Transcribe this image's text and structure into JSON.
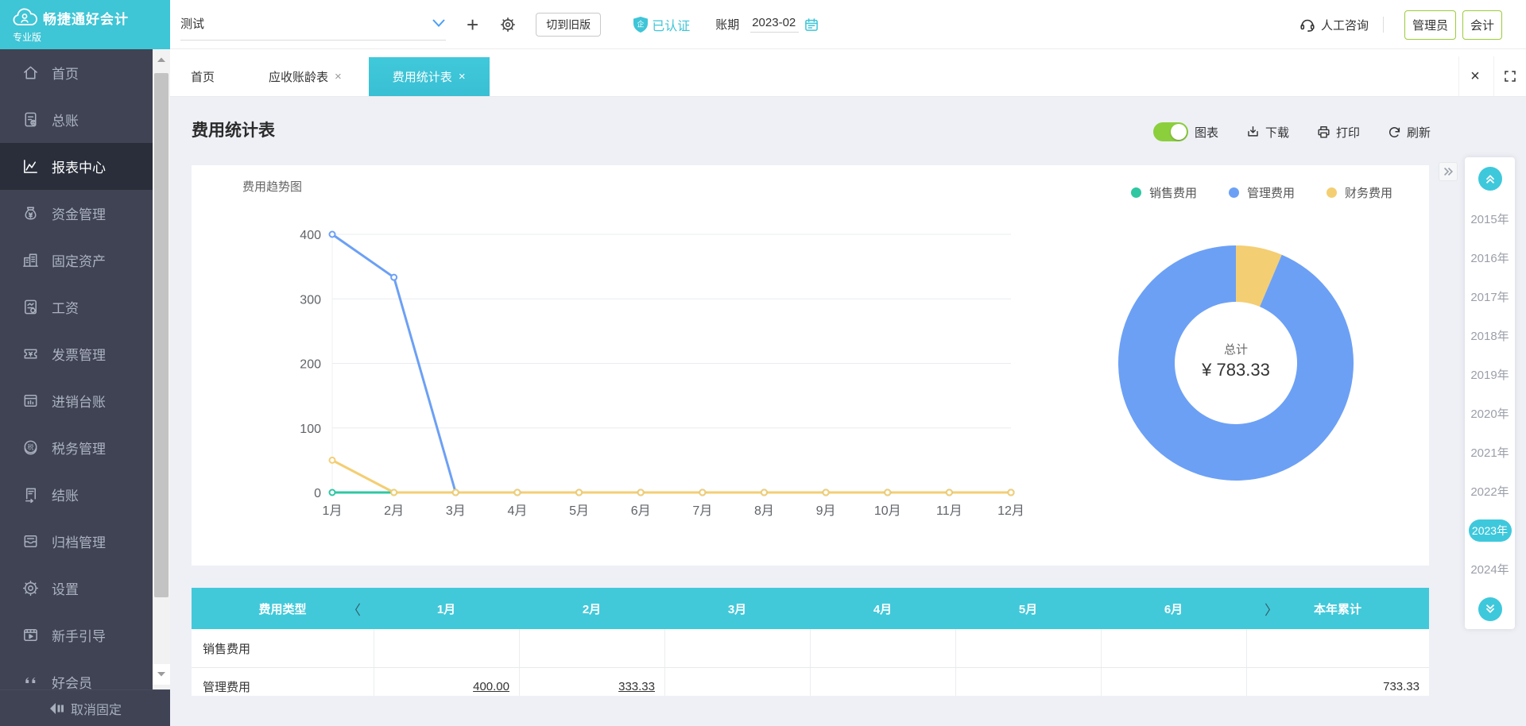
{
  "brand": {
    "name": "畅捷通好会计",
    "edition": "专业版"
  },
  "topbar": {
    "account": "测试",
    "switch_old_label": "切到旧版",
    "certified_label": "已认证",
    "period_label": "账期",
    "period_value": "2023-02",
    "support_label": "人工咨询",
    "role_admin": "管理员",
    "role_accountant": "会计"
  },
  "tabs": [
    {
      "label": "首页"
    },
    {
      "label": "应收账龄表",
      "close": "×"
    },
    {
      "label": "费用统计表",
      "close": "×"
    }
  ],
  "sidebar": {
    "items": [
      {
        "label": "首页"
      },
      {
        "label": "总账"
      },
      {
        "label": "报表中心"
      },
      {
        "label": "资金管理"
      },
      {
        "label": "固定资产"
      },
      {
        "label": "工资"
      },
      {
        "label": "发票管理"
      },
      {
        "label": "进销台账"
      },
      {
        "label": "税务管理"
      },
      {
        "label": "结账"
      },
      {
        "label": "归档管理"
      },
      {
        "label": "设置"
      },
      {
        "label": "新手引导"
      },
      {
        "label": "好会员"
      }
    ],
    "unpin_label": "取消固定"
  },
  "page": {
    "title": "费用统计表",
    "toggle_label": "图表",
    "toggle_on": true,
    "download_label": "下载",
    "print_label": "打印",
    "refresh_label": "刷新"
  },
  "chart_data": [
    {
      "type": "line",
      "title": "费用趋势图",
      "categories": [
        "1月",
        "2月",
        "3月",
        "4月",
        "5月",
        "6月",
        "7月",
        "8月",
        "9月",
        "10月",
        "11月",
        "12月"
      ],
      "series": [
        {
          "name": "销售费用",
          "color": "#2EC7A2",
          "values": [
            0,
            0,
            0,
            0,
            0,
            0,
            0,
            0,
            0,
            0,
            0,
            0
          ]
        },
        {
          "name": "管理费用",
          "color": "#6CA0F5",
          "values": [
            400,
            333.33,
            0,
            0,
            0,
            0,
            0,
            0,
            0,
            0,
            0,
            0
          ]
        },
        {
          "name": "财务费用",
          "color": "#F4CE73",
          "values": [
            50,
            0,
            0,
            0,
            0,
            0,
            0,
            0,
            0,
            0,
            0,
            0
          ]
        }
      ],
      "ylim": [
        0,
        400
      ],
      "yticks": [
        0,
        100,
        200,
        300,
        400
      ],
      "grid": true,
      "legend_position": "top-right"
    },
    {
      "type": "donut",
      "center_label": "总计",
      "center_value": "¥ 783.33",
      "total": 783.33,
      "slices": [
        {
          "name": "财务费用",
          "value": 50,
          "color": "#F4CE73"
        },
        {
          "name": "管理费用",
          "value": 733.33,
          "color": "#6CA0F5"
        },
        {
          "name": "销售费用",
          "value": 0,
          "color": "#2EC7A2"
        }
      ]
    }
  ],
  "table": {
    "columns": [
      "费用类型",
      "1月",
      "2月",
      "3月",
      "4月",
      "5月",
      "6月",
      "本年累计"
    ],
    "rows": [
      {
        "name": "销售费用",
        "m1": "",
        "m2": "",
        "m3": "",
        "m4": "",
        "m5": "",
        "m6": "",
        "total": ""
      },
      {
        "name": "管理费用",
        "m1": "400.00",
        "m2": "333.33",
        "m3": "",
        "m4": "",
        "m5": "",
        "m6": "",
        "total": "733.33"
      }
    ]
  },
  "year_panel": {
    "years": [
      "2015年",
      "2016年",
      "2017年",
      "2018年",
      "2019年",
      "2020年",
      "2021年",
      "2022年",
      "2023年",
      "2024年"
    ],
    "selected": "2023年"
  }
}
